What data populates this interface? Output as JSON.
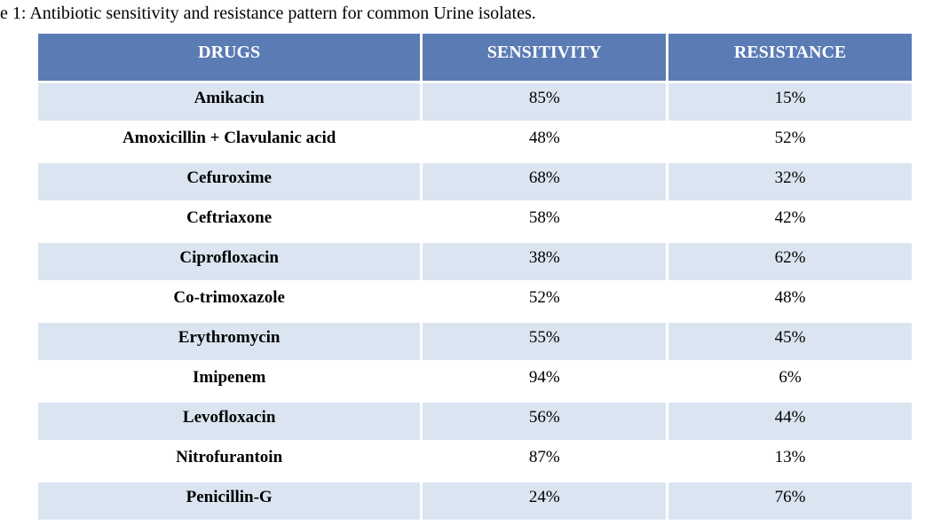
{
  "caption": "e 1: Antibiotic sensitivity and resistance pattern for common Urine isolates.",
  "table": {
    "type": "table",
    "header_bg": "#5b7bb4",
    "header_fg": "#ffffff",
    "row_odd_bg": "#dbe5f1",
    "row_even_bg": "#ffffff",
    "text_color": "#000000",
    "font_family": "Times New Roman",
    "header_fontsize": 20,
    "cell_fontsize": 19,
    "columns": [
      {
        "label": "DRUGS",
        "width_pct": 44,
        "align": "center",
        "bold_cells": true
      },
      {
        "label": "SENSITIVITY",
        "width_pct": 28,
        "align": "center",
        "bold_cells": false
      },
      {
        "label": "RESISTANCE",
        "width_pct": 28,
        "align": "center",
        "bold_cells": false
      }
    ],
    "rows": [
      [
        "Amikacin",
        "85%",
        "15%"
      ],
      [
        "Amoxicillin + Clavulanic acid",
        "48%",
        "52%"
      ],
      [
        "Cefuroxime",
        "68%",
        "32%"
      ],
      [
        "Ceftriaxone",
        "58%",
        "42%"
      ],
      [
        "Ciprofloxacin",
        "38%",
        "62%"
      ],
      [
        "Co-trimoxazole",
        "52%",
        "48%"
      ],
      [
        "Erythromycin",
        "55%",
        "45%"
      ],
      [
        "Imipenem",
        "94%",
        "6%"
      ],
      [
        "Levofloxacin",
        "56%",
        "44%"
      ],
      [
        "Nitrofurantoin",
        "87%",
        "13%"
      ],
      [
        "Penicillin-G",
        "24%",
        "76%"
      ]
    ]
  }
}
